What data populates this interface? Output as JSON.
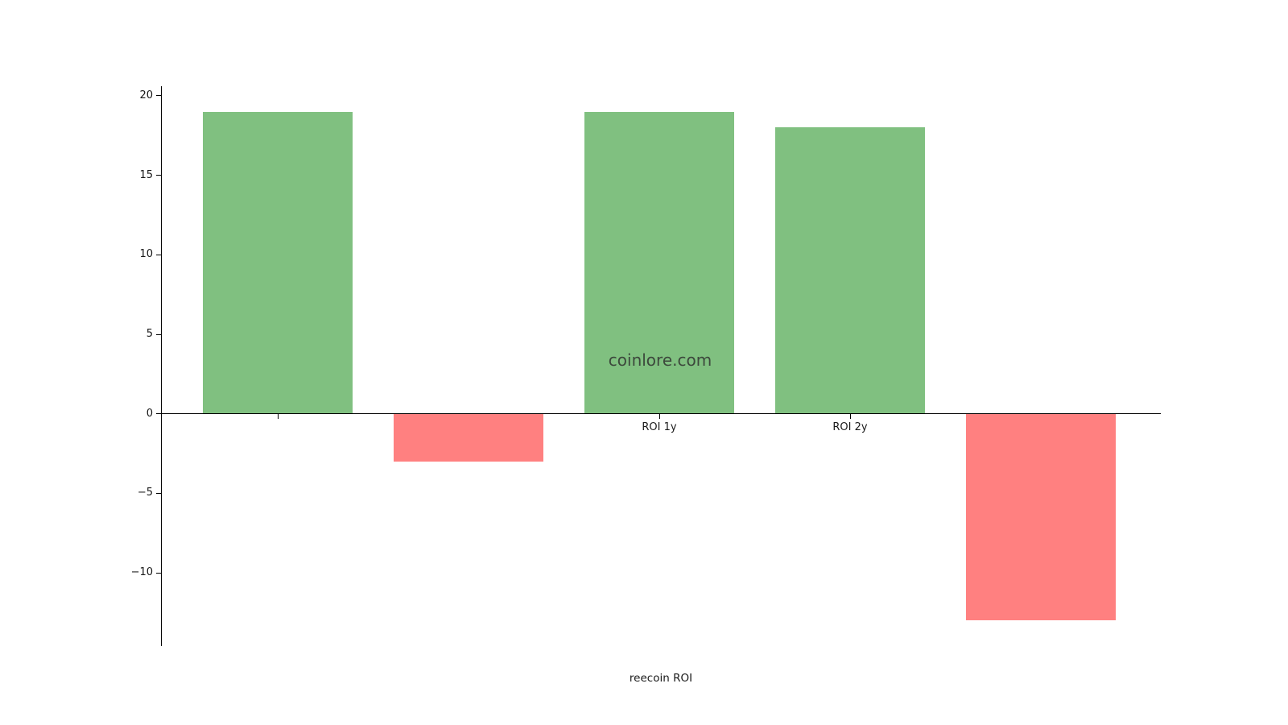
{
  "page": {
    "background": "#ffffff"
  },
  "watermark": {
    "text": "coinlore.com"
  },
  "chart_data": {
    "type": "bar",
    "title": "",
    "xlabel": "reecoin ROI",
    "ylabel": "",
    "categories": [
      "",
      "",
      "ROI 1y",
      "ROI 2y",
      ""
    ],
    "values": [
      19,
      -3,
      19,
      18,
      -13
    ],
    "positive_color": "#80c080",
    "negative_color": "#ff8080",
    "axis_color": "#000000",
    "tick_label_color": "#1a1a1a",
    "yticks": [
      20,
      15,
      10,
      5,
      0,
      -5,
      -10
    ],
    "ylim": [
      -14.6,
      20.6
    ],
    "grid": false,
    "legend": false
  }
}
